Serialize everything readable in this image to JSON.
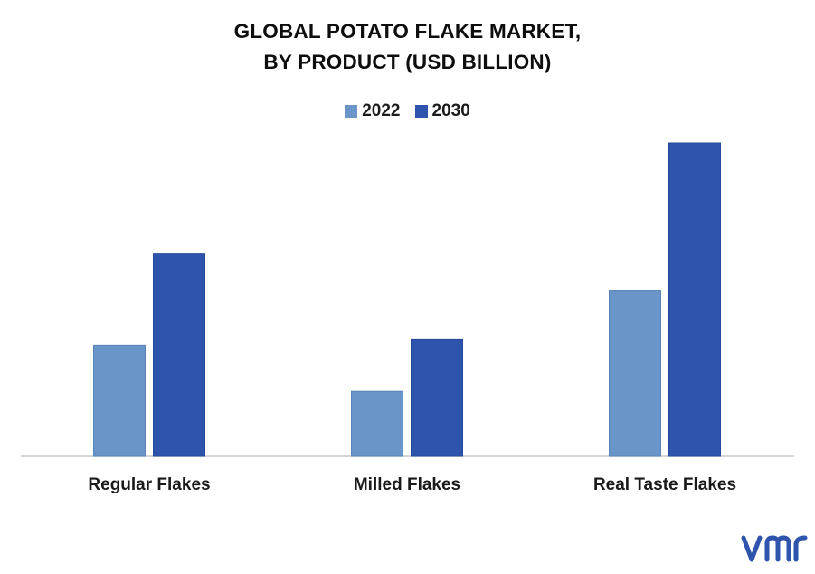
{
  "title_line1": "GLOBAL POTATO FLAKE MARKET,",
  "title_line2": "BY PRODUCT (USD BILLION)",
  "legend": [
    {
      "label": "2022",
      "color": "#6a95c9"
    },
    {
      "label": "2030",
      "color": "#2e54ad"
    }
  ],
  "logo": {
    "text": "vmr",
    "color": "#2e54ad",
    "icon": "vmr-logo"
  },
  "chart_data": {
    "type": "bar",
    "categories": [
      "Regular Flakes",
      "Milled Flakes",
      "Real Taste Flakes"
    ],
    "series": [
      {
        "name": "2022",
        "values": [
          1.23,
          0.72,
          1.84
        ],
        "color": "#6a95c9"
      },
      {
        "name": "2030",
        "values": [
          2.25,
          1.3,
          3.47
        ],
        "color": "#2e54ad"
      }
    ],
    "ylim": [
      0,
      3.47
    ],
    "grid": false,
    "legend_position": "top-center",
    "title": "GLOBAL POTATO FLAKE MARKET, BY PRODUCT (USD BILLION)"
  }
}
